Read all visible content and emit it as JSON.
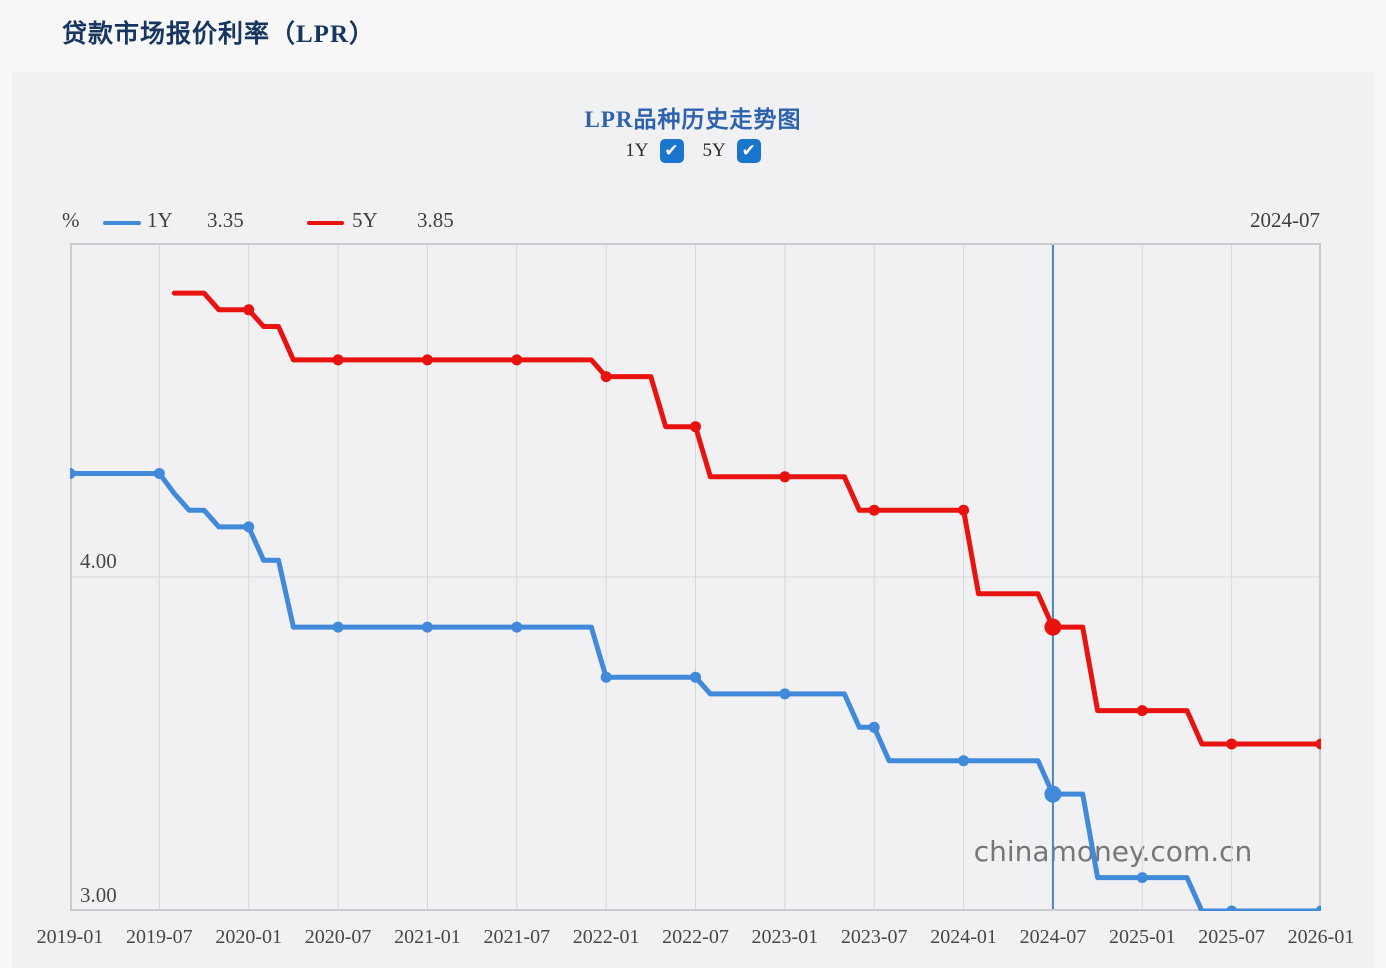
{
  "page": {
    "title": "贷款市场报价利率（LPR）"
  },
  "chart": {
    "title": "LPR品种历史走势图",
    "unit_label": "%",
    "current_date_label": "2024-07",
    "watermark": "chinamoney.com.cn",
    "checkmark_glyph": "✔",
    "checkbox_color": "#1976cc",
    "toggles": [
      {
        "label": "1Y",
        "checked": true
      },
      {
        "label": "5Y",
        "checked": true
      }
    ],
    "legend": [
      {
        "name": "1Y",
        "value": "3.35",
        "color": "#4189d9"
      },
      {
        "name": "5Y",
        "value": "3.85",
        "color": "#e8120f"
      }
    ]
  },
  "chart_data": {
    "type": "line",
    "title": "LPR品种历史走势图",
    "ylabel": "%",
    "ylim": [
      3.0,
      5.0
    ],
    "y_gridlines": [
      4.0
    ],
    "y_tick_labels": [
      {
        "label": "4.00",
        "value": 4.0
      },
      {
        "label": "3.00",
        "value": 3.0
      }
    ],
    "x_ticks": [
      "2019-01",
      "2019-07",
      "2020-01",
      "2020-07",
      "2021-01",
      "2021-07",
      "2022-01",
      "2022-07",
      "2023-01",
      "2023-07",
      "2024-01",
      "2024-07",
      "2025-01",
      "2025-07",
      "2026-01"
    ],
    "x_range": [
      "2019-01",
      "2026-01"
    ],
    "x_step": "1 month",
    "current_x": "2024-07",
    "marker_rule": "dot at every January and July value; enlarged dot at current_x",
    "grid": true,
    "legend_position": "top",
    "colors": {
      "grid": "#d6d7db",
      "plot_border": "#c9cbd0",
      "current_line": "#4d86bf"
    },
    "series": [
      {
        "name": "1Y",
        "color": "#4189d9",
        "start": "2019-01",
        "current_value": 3.35,
        "monthly_values": [
          4.31,
          4.31,
          4.31,
          4.31,
          4.31,
          4.31,
          4.31,
          4.25,
          4.2,
          4.2,
          4.15,
          4.15,
          4.15,
          4.05,
          4.05,
          3.85,
          3.85,
          3.85,
          3.85,
          3.85,
          3.85,
          3.85,
          3.85,
          3.85,
          3.85,
          3.85,
          3.85,
          3.85,
          3.85,
          3.85,
          3.85,
          3.85,
          3.85,
          3.85,
          3.85,
          3.85,
          3.7,
          3.7,
          3.7,
          3.7,
          3.7,
          3.7,
          3.7,
          3.65,
          3.65,
          3.65,
          3.65,
          3.65,
          3.65,
          3.65,
          3.65,
          3.65,
          3.65,
          3.55,
          3.55,
          3.45,
          3.45,
          3.45,
          3.45,
          3.45,
          3.45,
          3.45,
          3.45,
          3.45,
          3.45,
          3.45,
          3.35,
          3.35,
          3.35,
          3.1,
          3.1,
          3.1,
          3.1,
          3.1,
          3.1,
          3.1,
          3.0,
          3.0,
          3.0,
          3.0,
          3.0,
          3.0,
          3.0,
          3.0,
          3.0
        ]
      },
      {
        "name": "5Y",
        "color": "#e8120f",
        "start": "2019-08",
        "current_value": 3.85,
        "monthly_values": [
          4.85,
          4.85,
          4.85,
          4.8,
          4.8,
          4.8,
          4.75,
          4.75,
          4.65,
          4.65,
          4.65,
          4.65,
          4.65,
          4.65,
          4.65,
          4.65,
          4.65,
          4.65,
          4.65,
          4.65,
          4.65,
          4.65,
          4.65,
          4.65,
          4.65,
          4.65,
          4.65,
          4.65,
          4.65,
          4.6,
          4.6,
          4.6,
          4.6,
          4.45,
          4.45,
          4.45,
          4.3,
          4.3,
          4.3,
          4.3,
          4.3,
          4.3,
          4.3,
          4.3,
          4.3,
          4.3,
          4.2,
          4.2,
          4.2,
          4.2,
          4.2,
          4.2,
          4.2,
          4.2,
          3.95,
          3.95,
          3.95,
          3.95,
          3.95,
          3.85,
          3.85,
          3.85,
          3.6,
          3.6,
          3.6,
          3.6,
          3.6,
          3.6,
          3.6,
          3.5,
          3.5,
          3.5,
          3.5,
          3.5,
          3.5,
          3.5,
          3.5,
          3.5
        ]
      }
    ]
  }
}
